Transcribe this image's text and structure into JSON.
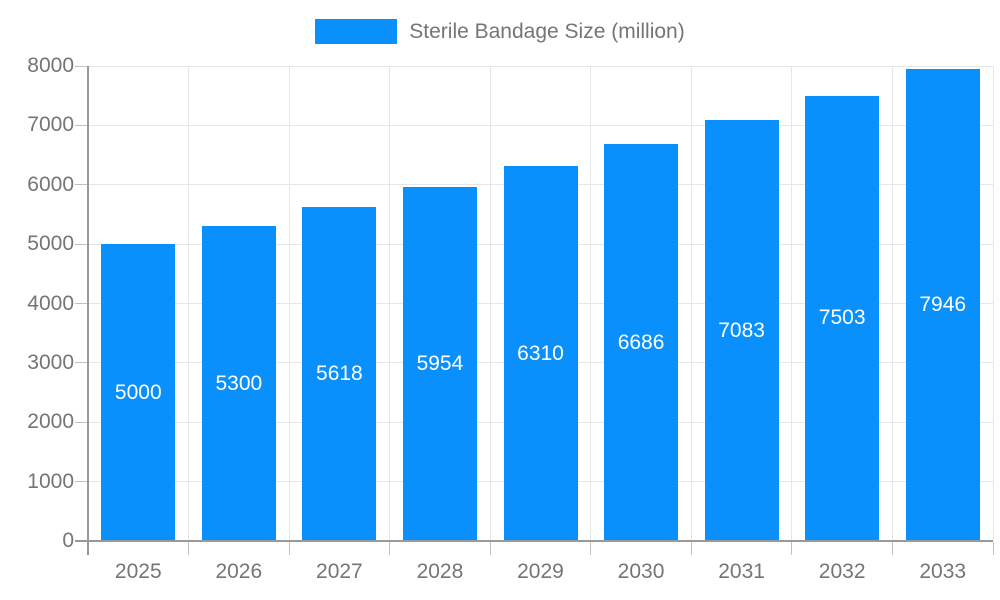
{
  "chart_data": {
    "type": "bar",
    "title": "Sterile Bandage Size (million)",
    "legend": [
      "Sterile Bandage Size (million)"
    ],
    "legend_position": "top-center",
    "categories": [
      "2025",
      "2026",
      "2027",
      "2028",
      "2029",
      "2030",
      "2031",
      "2032",
      "2033"
    ],
    "series": [
      {
        "name": "Sterile Bandage Size (million)",
        "values": [
          5000,
          5300,
          5618,
          5954,
          6310,
          6686,
          7083,
          7503,
          7946
        ]
      }
    ],
    "value_labels_shown": true,
    "xlabel": "",
    "ylabel": "",
    "ylim": [
      0,
      8000
    ],
    "ytick_step": 1000,
    "yticks": [
      0,
      1000,
      2000,
      3000,
      4000,
      5000,
      6000,
      7000,
      8000
    ],
    "grid": "on",
    "colors": {
      "bar": "#0a90fc",
      "bar_value_text": "#ffffff",
      "grid_line": "#e6e6e6",
      "tick_mark": "#c0c0c0",
      "axis_line": "#999999",
      "tick_text": "#757575",
      "legend_text": "#757575",
      "background": "#ffffff"
    }
  }
}
